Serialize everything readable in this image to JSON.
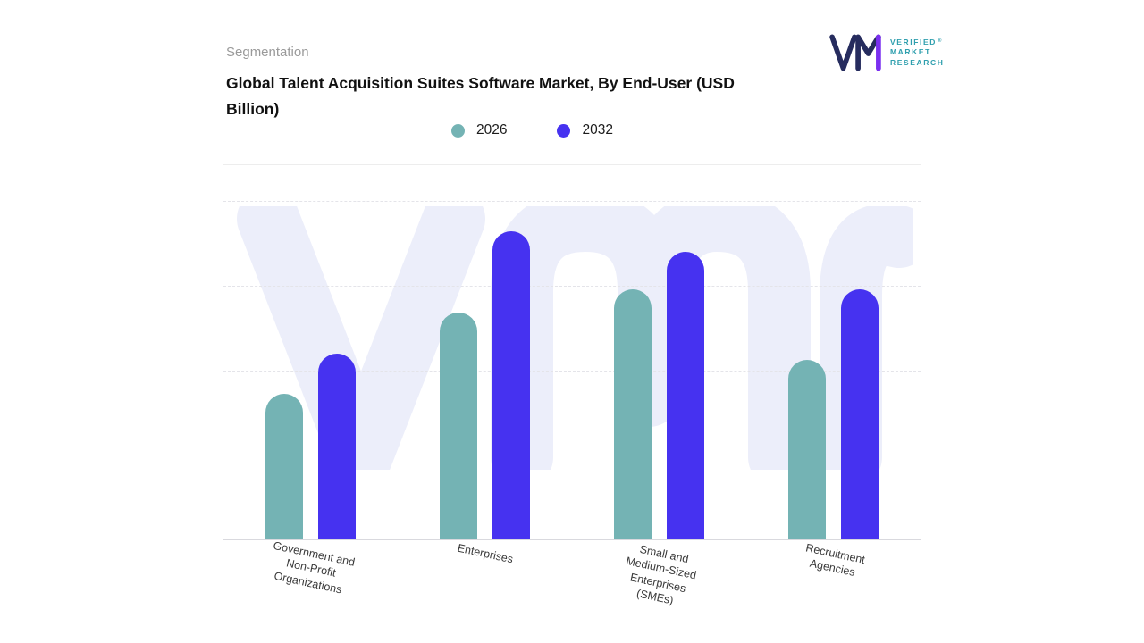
{
  "header": {
    "eyebrow": "Segmentation",
    "title": "Global Talent Acquisition Suites Software Market, By End-User (USD Billion)"
  },
  "branding": {
    "name_lines": [
      "VERIFIED",
      "MARKET",
      "RESEARCH"
    ],
    "registered": "®",
    "colors": {
      "mark_navy": "#262c5e",
      "mark_purple": "#7a2ff0",
      "wordmark_teal": "#2f9fae"
    }
  },
  "legend": {
    "items": [
      {
        "label": "2026",
        "color": "#74b3b4"
      },
      {
        "label": "2032",
        "color": "#4632f0"
      }
    ]
  },
  "chart_data": {
    "type": "bar",
    "title": "Global Talent Acquisition Suites Software Market, By End-User (USD Billion)",
    "categories": [
      "Government and\nNon-Profit\nOrganizations",
      "Enterprises",
      "Small and\nMedium-Sized\nEnterprises\n(SMEs)",
      "Recruitment\nAgencies"
    ],
    "series": [
      {
        "name": "2026",
        "color": "#74b3b4",
        "values": [
          4.3,
          6.7,
          7.4,
          5.3
        ]
      },
      {
        "name": "2032",
        "color": "#4632f0",
        "values": [
          5.5,
          9.1,
          8.5,
          7.4
        ]
      }
    ],
    "xlabel": "",
    "ylabel": "USD Billion",
    "ylim": [
      0,
      10
    ],
    "grid": "horizontal-dashed",
    "legend_position": "top-center",
    "watermark": "vmr"
  }
}
